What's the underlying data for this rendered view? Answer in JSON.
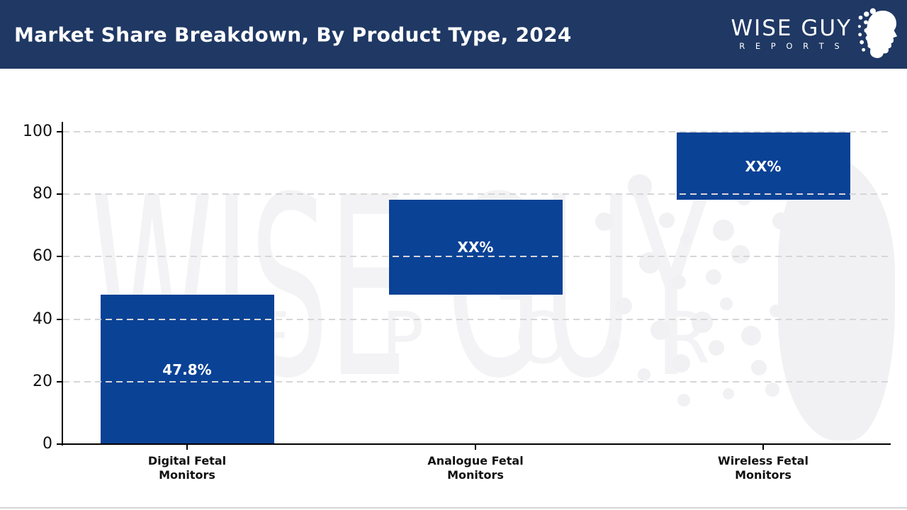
{
  "header": {
    "title": "Market Share Breakdown, By Product Type, 2024",
    "background_color": "#1f3864",
    "logo": {
      "line1": "WISE GUY",
      "line2": "R E P O R T S"
    }
  },
  "watermark": {
    "line1": "WISE GUY",
    "line2": "R E P O R T S"
  },
  "chart_data": {
    "type": "bar",
    "subtype": "floating-segment-waterfall",
    "title": "Market Share Breakdown, By Product Type, 2024",
    "categories": [
      {
        "line1": "Digital Fetal",
        "line2": "Monitors"
      },
      {
        "line1": "Analogue Fetal",
        "line2": "Monitors"
      },
      {
        "line1": "Wireless Fetal",
        "line2": "Monitors"
      }
    ],
    "series": [
      {
        "name": "Market share (%)",
        "segments": [
          {
            "category": "Digital Fetal Monitors",
            "start": 0,
            "end": 47.8,
            "label": "47.8%"
          },
          {
            "category": "Analogue Fetal Monitors",
            "start": 47.8,
            "end": 78.2,
            "label": "XX%"
          },
          {
            "category": "Wireless Fetal Monitors",
            "start": 78.2,
            "end": 99.8,
            "label": "XX%"
          }
        ]
      }
    ],
    "yticks": [
      0,
      20,
      40,
      60,
      80,
      100
    ],
    "ylim": [
      0,
      103
    ],
    "xlabel": "",
    "ylabel": "",
    "grid": "horizontal-dashed",
    "legend": "none",
    "bar_color": "#0a4296",
    "bar_label_color": "#ffffff",
    "axis_color": "#000000",
    "gridline_color": "#d6d6d6"
  },
  "colors": {
    "header_navy": "#1f3864",
    "bar_blue": "#0a4296",
    "watermark_gray": "#f3f3f5",
    "bottom_rule_gray": "#d5d5d8"
  }
}
